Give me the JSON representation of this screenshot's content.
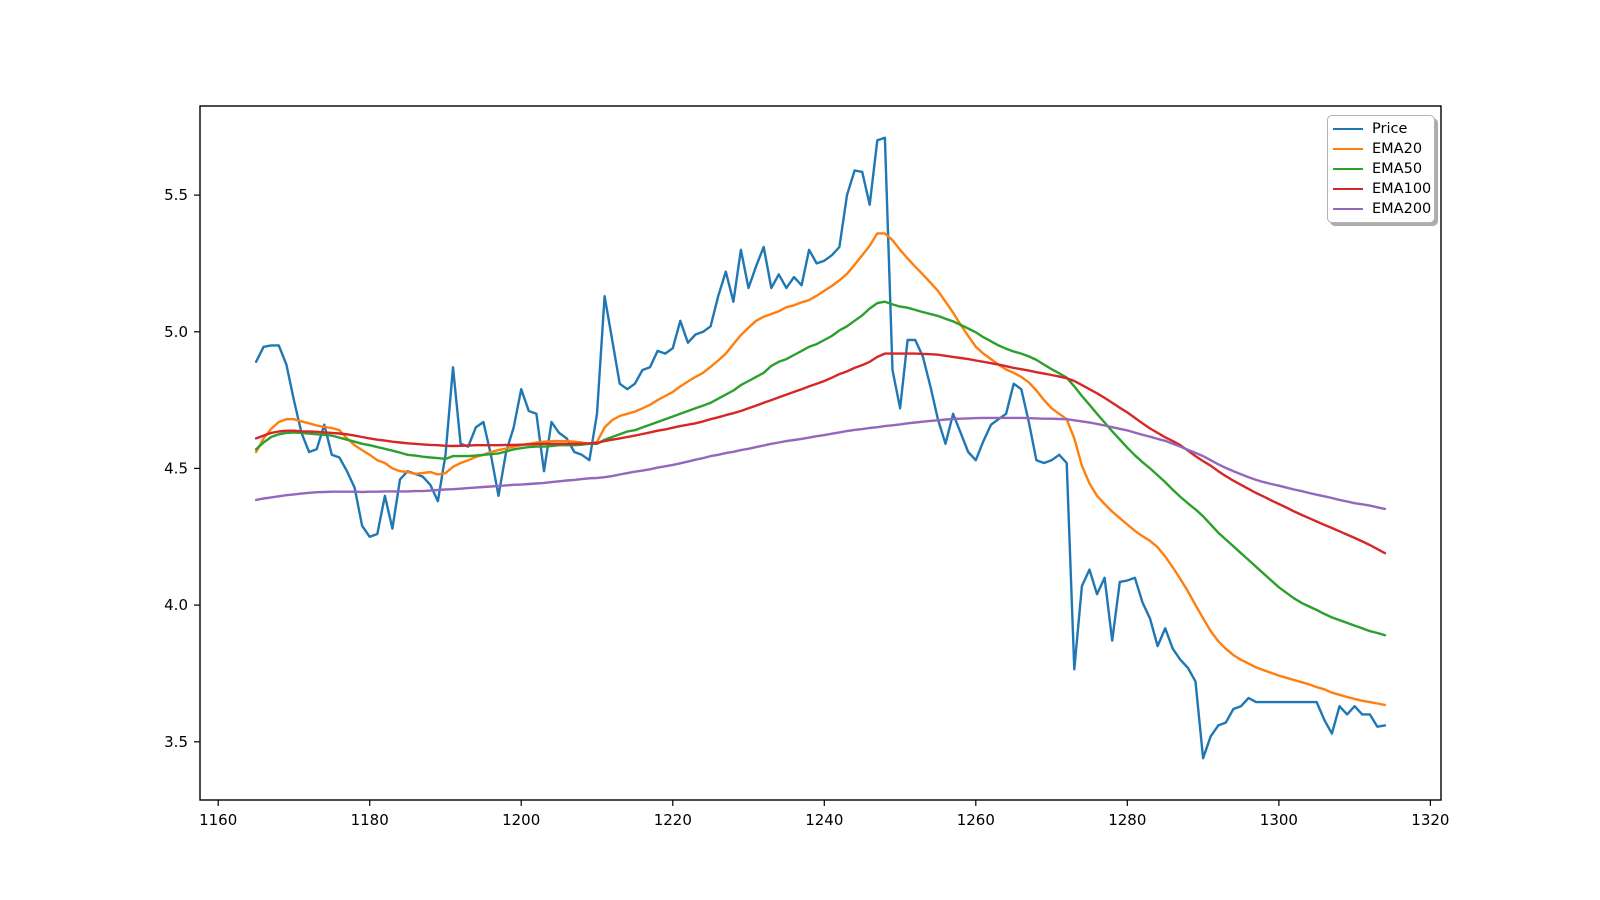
{
  "chart_data": {
    "type": "line",
    "title": "",
    "xlabel": "",
    "ylabel": "",
    "grid": false,
    "legend_position": "upper right",
    "xlim": [
      1157.6,
      1321.4
    ],
    "ylim": [
      3.287,
      5.826
    ],
    "x_ticks": [
      1160,
      1180,
      1200,
      1220,
      1240,
      1260,
      1280,
      1300,
      1320
    ],
    "x_tick_labels": [
      "1160",
      "1180",
      "1200",
      "1220",
      "1240",
      "1260",
      "1280",
      "1300",
      "1320"
    ],
    "y_ticks": [
      3.5,
      4.0,
      4.5,
      5.0,
      5.5
    ],
    "y_tick_labels": [
      "3.5",
      "4.0",
      "4.5",
      "5.0",
      "5.5"
    ],
    "x_start": 1165,
    "x_step": 1,
    "series": [
      {
        "name": "Price",
        "color": "#1f77b4",
        "values": [
          4.89,
          4.945,
          4.95,
          4.95,
          4.88,
          4.75,
          4.63,
          4.56,
          4.57,
          4.66,
          4.55,
          4.54,
          4.49,
          4.43,
          4.29,
          4.25,
          4.26,
          4.4,
          4.28,
          4.46,
          4.49,
          4.48,
          4.47,
          4.44,
          4.38,
          4.55,
          4.87,
          4.59,
          4.58,
          4.65,
          4.67,
          4.55,
          4.4,
          4.56,
          4.65,
          4.79,
          4.71,
          4.7,
          4.49,
          4.67,
          4.63,
          4.61,
          4.56,
          4.55,
          4.53,
          4.7,
          5.13,
          4.97,
          4.81,
          4.79,
          4.81,
          4.86,
          4.87,
          4.93,
          4.92,
          4.94,
          5.04,
          4.96,
          4.99,
          5.0,
          5.02,
          5.13,
          5.22,
          5.11,
          5.3,
          5.16,
          5.24,
          5.31,
          5.16,
          5.21,
          5.16,
          5.2,
          5.17,
          5.3,
          5.25,
          5.26,
          5.28,
          5.31,
          5.5,
          5.59,
          5.585,
          5.465,
          5.7,
          5.71,
          4.86,
          4.72,
          4.97,
          4.97,
          4.91,
          4.8,
          4.68,
          4.59,
          4.7,
          4.63,
          4.56,
          4.53,
          4.6,
          4.66,
          4.68,
          4.7,
          4.81,
          4.79,
          4.67,
          4.53,
          4.52,
          4.53,
          4.55,
          4.52,
          3.765,
          4.07,
          4.13,
          4.04,
          4.1,
          3.87,
          4.085,
          4.09,
          4.1,
          4.01,
          3.95,
          3.85,
          3.915,
          3.84,
          3.8,
          3.77,
          3.72,
          3.44,
          3.52,
          3.56,
          3.57,
          3.62,
          3.63,
          3.66,
          3.645,
          3.645,
          3.645,
          3.645,
          3.645,
          3.645,
          3.645,
          3.645,
          3.645,
          3.58,
          3.53,
          3.63,
          3.6,
          3.63,
          3.6,
          3.6,
          3.555,
          3.56
        ]
      },
      {
        "name": "EMA20",
        "color": "#ff7f0e",
        "values": [
          4.56,
          4.61,
          4.645,
          4.67,
          4.68,
          4.68,
          4.672,
          4.665,
          4.657,
          4.652,
          4.648,
          4.64,
          4.61,
          4.585,
          4.567,
          4.55,
          4.53,
          4.52,
          4.5,
          4.49,
          4.487,
          4.48,
          4.483,
          4.487,
          4.478,
          4.483,
          4.506,
          4.52,
          4.53,
          4.542,
          4.55,
          4.56,
          4.567,
          4.573,
          4.58,
          4.585,
          4.59,
          4.595,
          4.598,
          4.6,
          4.6,
          4.6,
          4.598,
          4.595,
          4.59,
          4.597,
          4.65,
          4.677,
          4.692,
          4.7,
          4.708,
          4.72,
          4.733,
          4.75,
          4.765,
          4.78,
          4.8,
          4.818,
          4.835,
          4.85,
          4.872,
          4.895,
          4.92,
          4.955,
          4.988,
          5.015,
          5.04,
          5.055,
          5.065,
          5.075,
          5.09,
          5.097,
          5.108,
          5.116,
          5.132,
          5.15,
          5.168,
          5.188,
          5.212,
          5.245,
          5.28,
          5.315,
          5.36,
          5.36,
          5.335,
          5.3,
          5.268,
          5.238,
          5.21,
          5.18,
          5.15,
          5.11,
          5.07,
          5.025,
          4.985,
          4.945,
          4.92,
          4.9,
          4.88,
          4.862,
          4.85,
          4.835,
          4.815,
          4.785,
          4.75,
          4.72,
          4.7,
          4.68,
          4.61,
          4.51,
          4.445,
          4.4,
          4.37,
          4.342,
          4.318,
          4.295,
          4.272,
          4.252,
          4.235,
          4.212,
          4.178,
          4.138,
          4.095,
          4.05,
          4.0,
          3.952,
          3.905,
          3.868,
          3.84,
          3.817,
          3.8,
          3.786,
          3.772,
          3.762,
          3.752,
          3.742,
          3.734,
          3.726,
          3.718,
          3.71,
          3.7,
          3.692,
          3.68,
          3.672,
          3.664,
          3.657,
          3.65,
          3.645,
          3.64,
          3.635
        ]
      },
      {
        "name": "EMA50",
        "color": "#2ca02c",
        "values": [
          4.57,
          4.595,
          4.615,
          4.625,
          4.63,
          4.632,
          4.63,
          4.628,
          4.625,
          4.623,
          4.62,
          4.613,
          4.605,
          4.598,
          4.59,
          4.585,
          4.578,
          4.572,
          4.565,
          4.558,
          4.55,
          4.547,
          4.543,
          4.54,
          4.538,
          4.535,
          4.545,
          4.545,
          4.545,
          4.547,
          4.55,
          4.552,
          4.555,
          4.562,
          4.57,
          4.574,
          4.578,
          4.58,
          4.58,
          4.582,
          4.585,
          4.585,
          4.585,
          4.587,
          4.59,
          4.59,
          4.605,
          4.615,
          4.625,
          4.635,
          4.64,
          4.65,
          4.66,
          4.67,
          4.68,
          4.69,
          4.7,
          4.71,
          4.72,
          4.73,
          4.74,
          4.755,
          4.77,
          4.785,
          4.805,
          4.82,
          4.835,
          4.85,
          4.875,
          4.89,
          4.9,
          4.915,
          4.93,
          4.945,
          4.955,
          4.97,
          4.985,
          5.005,
          5.02,
          5.04,
          5.06,
          5.085,
          5.105,
          5.11,
          5.1,
          5.092,
          5.088,
          5.08,
          5.072,
          5.065,
          5.058,
          5.048,
          5.038,
          5.025,
          5.012,
          4.998,
          4.98,
          4.965,
          4.95,
          4.938,
          4.928,
          4.92,
          4.91,
          4.897,
          4.88,
          4.863,
          4.848,
          4.832,
          4.8,
          4.765,
          4.733,
          4.7,
          4.668,
          4.636,
          4.606,
          4.576,
          4.548,
          4.523,
          4.5,
          4.475,
          4.45,
          4.422,
          4.396,
          4.372,
          4.35,
          4.325,
          4.295,
          4.265,
          4.24,
          4.215,
          4.19,
          4.165,
          4.14,
          4.115,
          4.09,
          4.065,
          4.045,
          4.025,
          4.008,
          3.995,
          3.982,
          3.968,
          3.955,
          3.945,
          3.935,
          3.925,
          3.915,
          3.905,
          3.898,
          3.89
        ]
      },
      {
        "name": "EMA100",
        "color": "#d62728",
        "values": [
          4.61,
          4.62,
          4.63,
          4.635,
          4.638,
          4.638,
          4.636,
          4.635,
          4.634,
          4.632,
          4.63,
          4.628,
          4.625,
          4.62,
          4.615,
          4.61,
          4.605,
          4.602,
          4.598,
          4.595,
          4.592,
          4.59,
          4.588,
          4.586,
          4.585,
          4.583,
          4.582,
          4.583,
          4.584,
          4.585,
          4.585,
          4.585,
          4.585,
          4.586,
          4.586,
          4.587,
          4.588,
          4.589,
          4.59,
          4.59,
          4.59,
          4.59,
          4.59,
          4.591,
          4.592,
          4.593,
          4.6,
          4.605,
          4.61,
          4.615,
          4.62,
          4.626,
          4.632,
          4.638,
          4.643,
          4.649,
          4.655,
          4.66,
          4.665,
          4.672,
          4.68,
          4.687,
          4.695,
          4.702,
          4.71,
          4.72,
          4.73,
          4.74,
          4.75,
          4.76,
          4.77,
          4.78,
          4.79,
          4.8,
          4.81,
          4.82,
          4.832,
          4.845,
          4.855,
          4.868,
          4.878,
          4.89,
          4.908,
          4.92,
          4.92,
          4.92,
          4.92,
          4.92,
          4.919,
          4.918,
          4.916,
          4.912,
          4.908,
          4.904,
          4.9,
          4.895,
          4.89,
          4.885,
          4.88,
          4.874,
          4.868,
          4.863,
          4.858,
          4.852,
          4.847,
          4.842,
          4.836,
          4.83,
          4.82,
          4.805,
          4.79,
          4.775,
          4.758,
          4.74,
          4.722,
          4.705,
          4.685,
          4.665,
          4.646,
          4.63,
          4.614,
          4.6,
          4.585,
          4.565,
          4.545,
          4.527,
          4.51,
          4.49,
          4.472,
          4.455,
          4.44,
          4.425,
          4.41,
          4.397,
          4.383,
          4.37,
          4.357,
          4.343,
          4.33,
          4.318,
          4.306,
          4.294,
          4.282,
          4.27,
          4.258,
          4.246,
          4.233,
          4.22,
          4.205,
          4.19
        ]
      },
      {
        "name": "EMA200",
        "color": "#9467bd",
        "values": [
          4.385,
          4.39,
          4.394,
          4.398,
          4.402,
          4.405,
          4.408,
          4.411,
          4.413,
          4.414,
          4.415,
          4.415,
          4.415,
          4.415,
          4.414,
          4.415,
          4.415,
          4.416,
          4.416,
          4.416,
          4.416,
          4.417,
          4.417,
          4.419,
          4.421,
          4.423,
          4.424,
          4.426,
          4.428,
          4.43,
          4.432,
          4.434,
          4.436,
          4.438,
          4.44,
          4.441,
          4.443,
          4.445,
          4.447,
          4.45,
          4.453,
          4.456,
          4.458,
          4.461,
          4.464,
          4.465,
          4.468,
          4.472,
          4.478,
          4.483,
          4.488,
          4.492,
          4.497,
          4.503,
          4.508,
          4.513,
          4.519,
          4.525,
          4.532,
          4.538,
          4.545,
          4.55,
          4.556,
          4.561,
          4.567,
          4.572,
          4.578,
          4.584,
          4.59,
          4.595,
          4.6,
          4.604,
          4.608,
          4.613,
          4.618,
          4.622,
          4.627,
          4.632,
          4.637,
          4.641,
          4.644,
          4.648,
          4.651,
          4.655,
          4.658,
          4.661,
          4.665,
          4.668,
          4.671,
          4.674,
          4.676,
          4.679,
          4.681,
          4.682,
          4.683,
          4.684,
          4.685,
          4.685,
          4.685,
          4.685,
          4.685,
          4.685,
          4.684,
          4.683,
          4.682,
          4.682,
          4.681,
          4.68,
          4.676,
          4.672,
          4.668,
          4.663,
          4.657,
          4.651,
          4.645,
          4.639,
          4.631,
          4.623,
          4.616,
          4.608,
          4.601,
          4.59,
          4.58,
          4.568,
          4.557,
          4.545,
          4.53,
          4.515,
          4.502,
          4.49,
          4.479,
          4.468,
          4.458,
          4.45,
          4.443,
          4.437,
          4.43,
          4.423,
          4.417,
          4.41,
          4.404,
          4.398,
          4.392,
          4.385,
          4.379,
          4.373,
          4.369,
          4.364,
          4.358,
          4.352
        ]
      }
    ]
  }
}
